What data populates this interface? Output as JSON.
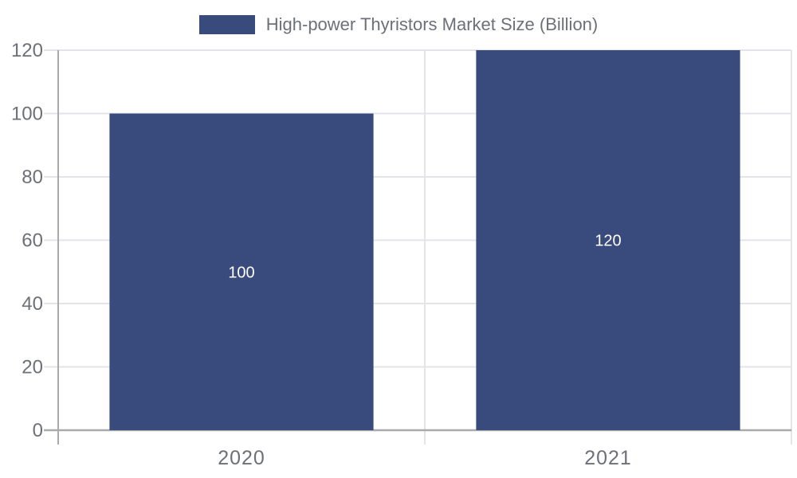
{
  "legend": {
    "label": "High-power Thyristors Market Size (Billion)"
  },
  "chart_data": {
    "type": "bar",
    "title": "",
    "categories": [
      "2020",
      "2021"
    ],
    "series": [
      {
        "name": "High-power Thyristors Market Size (Billion)",
        "values": [
          100,
          120
        ]
      }
    ],
    "value_labels": [
      "100",
      "120"
    ],
    "xlabel": "",
    "ylabel": "",
    "ylim": [
      0,
      120
    ],
    "yticks": [
      0,
      20,
      40,
      60,
      80,
      100,
      120
    ],
    "grid": true,
    "legend_position": "top-center",
    "colors": {
      "bar": "#394A7D",
      "grid_line": "#E4E4E8",
      "axis_line": "#A9AAAE",
      "tick_label": "#6E7079",
      "legend_text": "#6E7079",
      "value_label": "#FFFFFF",
      "background": "#FFFFFF"
    }
  }
}
